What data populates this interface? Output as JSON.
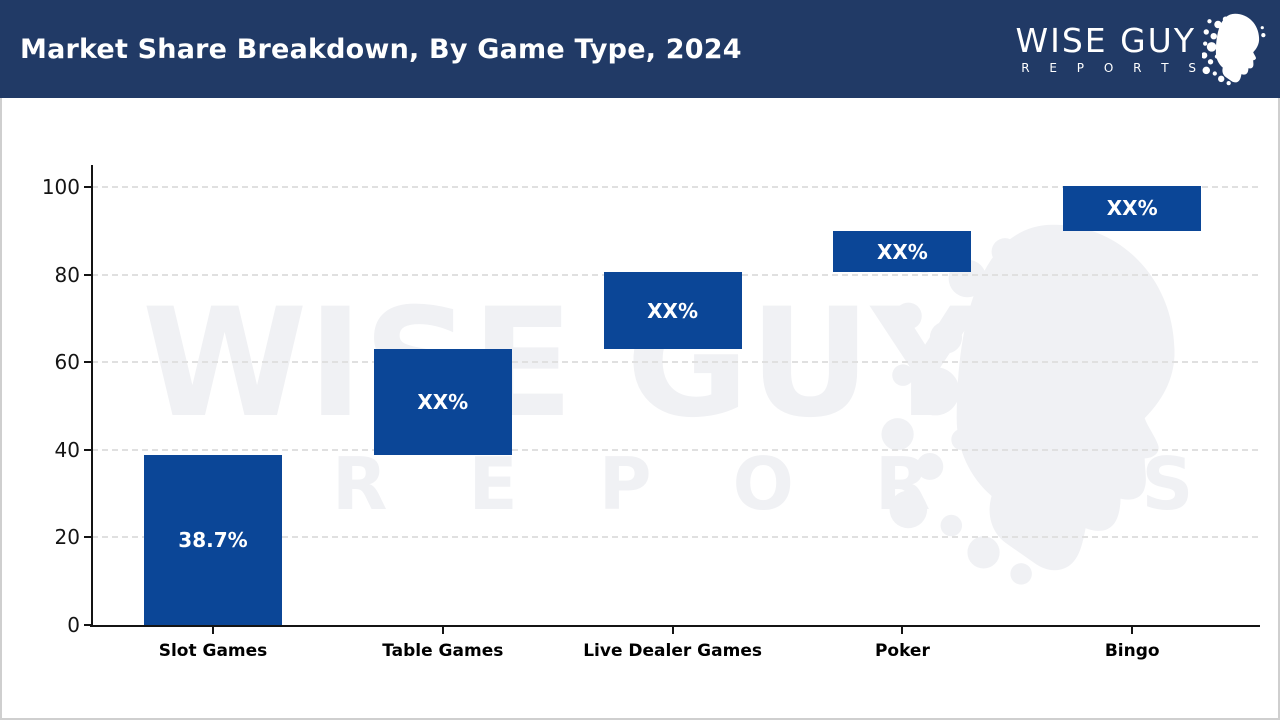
{
  "header": {
    "title": "Market Share Breakdown, By Game Type, 2024",
    "logo": {
      "line1": "WISE GUY",
      "line2": "R E P O R T S"
    }
  },
  "watermark": {
    "line1": "WISE GUY",
    "line2": "R E P O R T S"
  },
  "chart_data": {
    "type": "bar",
    "subtype": "waterfall",
    "title": "Market Share Breakdown, By Game Type, 2024",
    "categories": [
      "Slot Games",
      "Table Games",
      "Live Dealer Games",
      "Poker",
      "Bingo"
    ],
    "segments": [
      {
        "category": "Slot Games",
        "start": 0,
        "end": 38.7,
        "label": "38.7%"
      },
      {
        "category": "Table Games",
        "start": 38.7,
        "end": 63.0,
        "label": "XX%"
      },
      {
        "category": "Live Dealer Games",
        "start": 63.0,
        "end": 80.5,
        "label": "XX%"
      },
      {
        "category": "Poker",
        "start": 80.5,
        "end": 90.0,
        "label": "XX%"
      },
      {
        "category": "Bingo",
        "start": 90.0,
        "end": 100.3,
        "label": "XX%"
      }
    ],
    "yticks": [
      0,
      20,
      40,
      60,
      80,
      100
    ],
    "ylim": [
      0,
      104
    ],
    "xlabel": "",
    "ylabel": "",
    "grid": "horizontal-dashed",
    "legend": "none",
    "bar_color": "#0b4697",
    "bar_label_color": "#ffffff"
  },
  "colors": {
    "header_bg": "#213a66",
    "bar": "#0b4697",
    "gridline": "#e0e0e0",
    "axis": "#141414",
    "watermark": "#f0f1f4",
    "border": "#cfcfcf"
  }
}
